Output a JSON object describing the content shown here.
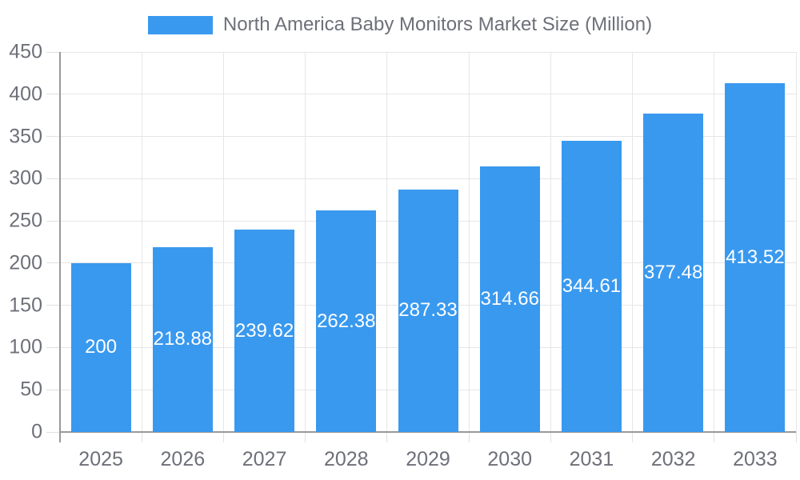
{
  "chart_data": {
    "type": "bar",
    "title": "North America Baby Monitors Market Size (Million)",
    "legend": {
      "label": "North America Baby Monitors Market Size (Million)",
      "position": "top-center"
    },
    "categories": [
      "2025",
      "2026",
      "2027",
      "2028",
      "2029",
      "2030",
      "2031",
      "2032",
      "2033"
    ],
    "values": [
      200,
      218.88,
      239.62,
      262.38,
      287.33,
      314.66,
      344.61,
      377.48,
      413.52
    ],
    "value_labels": [
      "200",
      "218.88",
      "239.62",
      "262.38",
      "287.33",
      "314.66",
      "344.61",
      "377.48",
      "413.52"
    ],
    "xlabel": "",
    "ylabel": "",
    "ylim": [
      0,
      450
    ],
    "ytick_interval": 50,
    "y_ticks": [
      "0",
      "50",
      "100",
      "150",
      "200",
      "250",
      "300",
      "350",
      "400",
      "450"
    ],
    "grid": true,
    "legend_visible": true,
    "colors": {
      "bar": "#3999EF",
      "value_label": "#FFFFFF",
      "axis_text": "#6E7079",
      "axis_line": "#999999",
      "gridline": "#E6E6E6",
      "tick": "#E0E0E0",
      "background": "#FFFFFF"
    }
  }
}
